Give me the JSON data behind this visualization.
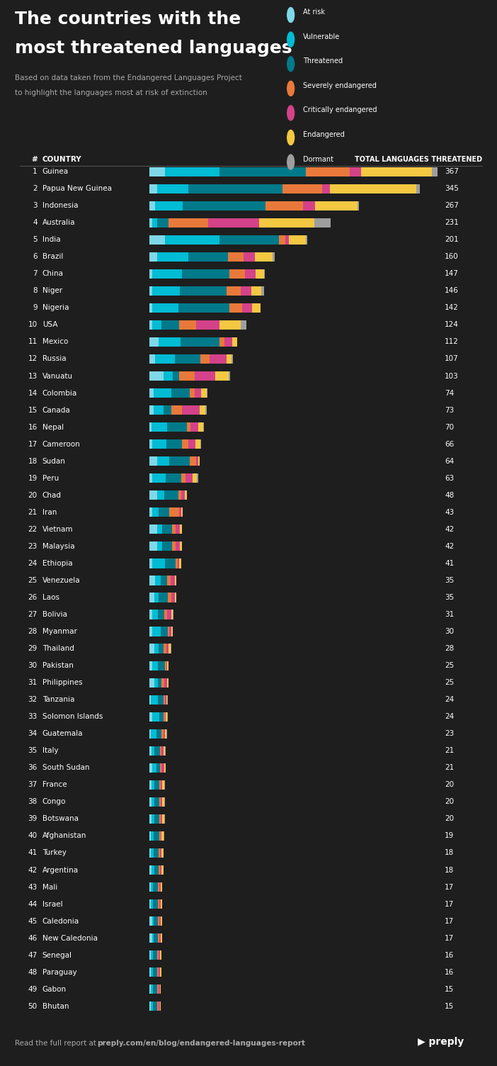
{
  "title_line1": "The countries with the",
  "title_line2": "most threatened languages",
  "subtitle_line1": "Based on data taken from the Endangered Languages Project",
  "subtitle_line2": "to highlight the languages most at risk of extinction",
  "background_color": "#1e1e1e",
  "colors": [
    "#7fd8e8",
    "#00bcd4",
    "#007a8a",
    "#e8793a",
    "#d4428a",
    "#f5c842",
    "#9e9e9e"
  ],
  "legend_labels": [
    "At risk",
    "Vulnerable",
    "Threatened",
    "Severely endangered",
    "Critically endangered",
    "Endangered",
    "Dormant"
  ],
  "categories": [
    "Guinea",
    "Papua New Guinea",
    "Indonesia",
    "Australia",
    "India",
    "Brazil",
    "China",
    "Niger",
    "Nigeria",
    "USA",
    "Mexico",
    "Russia",
    "Vanuatu",
    "Colombia",
    "Canada",
    "Nepal",
    "Cameroon",
    "Sudan",
    "Peru",
    "Chad",
    "Iran",
    "Vietnam",
    "Malaysia",
    "Ethiopia",
    "Venezuela",
    "Laos",
    "Bolivia",
    "Myanmar",
    "Thailand",
    "Pakistan",
    "Philippines",
    "Tanzania",
    "Solomon Islands",
    "Guatemala",
    "Italy",
    "South Sudan",
    "France",
    "Congo",
    "Botswana",
    "Afghanistan",
    "Turkey",
    "Argentina",
    "Mali",
    "Israel",
    "Caledonia",
    "New Caledonia",
    "Senegal",
    "Paraguay",
    "Gabon",
    "Bhutan"
  ],
  "totals": [
    367,
    345,
    267,
    231,
    201,
    160,
    147,
    146,
    142,
    124,
    112,
    107,
    103,
    74,
    73,
    70,
    66,
    64,
    63,
    48,
    43,
    42,
    42,
    41,
    35,
    35,
    31,
    30,
    28,
    25,
    25,
    24,
    24,
    23,
    21,
    21,
    20,
    20,
    20,
    19,
    18,
    18,
    17,
    17,
    17,
    17,
    16,
    16,
    15,
    15
  ],
  "raw_segments": [
    [
      20,
      70,
      110,
      55,
      15,
      90,
      7
    ],
    [
      10,
      40,
      120,
      50,
      10,
      110,
      5
    ],
    [
      8,
      35,
      105,
      48,
      15,
      54,
      2
    ],
    [
      4,
      6,
      15,
      50,
      65,
      70,
      21
    ],
    [
      20,
      70,
      75,
      8,
      5,
      22,
      1
    ],
    [
      10,
      40,
      50,
      20,
      15,
      22,
      3
    ],
    [
      4,
      38,
      60,
      20,
      14,
      10,
      1
    ],
    [
      4,
      35,
      60,
      18,
      13,
      13,
      3
    ],
    [
      4,
      33,
      65,
      16,
      13,
      11,
      0
    ],
    [
      4,
      12,
      22,
      22,
      30,
      27,
      7
    ],
    [
      12,
      28,
      50,
      6,
      10,
      6,
      0
    ],
    [
      8,
      25,
      32,
      12,
      22,
      6,
      2
    ],
    [
      18,
      12,
      8,
      20,
      26,
      17,
      2
    ],
    [
      6,
      22,
      24,
      6,
      8,
      7,
      1
    ],
    [
      6,
      12,
      10,
      14,
      22,
      8,
      1
    ],
    [
      3,
      20,
      25,
      5,
      10,
      6,
      1
    ],
    [
      4,
      18,
      20,
      8,
      9,
      6,
      1
    ],
    [
      10,
      16,
      26,
      8,
      3,
      1,
      0
    ],
    [
      4,
      17,
      20,
      5,
      9,
      6,
      2
    ],
    [
      10,
      9,
      18,
      4,
      4,
      3,
      0
    ],
    [
      4,
      8,
      14,
      12,
      3,
      2,
      0
    ],
    [
      10,
      7,
      12,
      5,
      5,
      3,
      0
    ],
    [
      10,
      7,
      12,
      5,
      5,
      3,
      0
    ],
    [
      4,
      16,
      14,
      2,
      2,
      3,
      0
    ],
    [
      8,
      7,
      8,
      4,
      6,
      2,
      0
    ],
    [
      7,
      5,
      12,
      4,
      5,
      2,
      0
    ],
    [
      4,
      7,
      8,
      4,
      5,
      2,
      1
    ],
    [
      4,
      11,
      9,
      2,
      2,
      2,
      0
    ],
    [
      7,
      5,
      6,
      4,
      3,
      2,
      1
    ],
    [
      4,
      7,
      9,
      2,
      1,
      2,
      0
    ],
    [
      7,
      4,
      5,
      3,
      4,
      2,
      0
    ],
    [
      2,
      9,
      7,
      2,
      2,
      1,
      1
    ],
    [
      4,
      9,
      5,
      2,
      1,
      2,
      1
    ],
    [
      2,
      7,
      7,
      2,
      2,
      2,
      1
    ],
    [
      3,
      4,
      7,
      2,
      2,
      2,
      1
    ],
    [
      4,
      5,
      5,
      2,
      3,
      2,
      0
    ],
    [
      3,
      4,
      6,
      2,
      2,
      2,
      1
    ],
    [
      3,
      4,
      6,
      2,
      2,
      2,
      1
    ],
    [
      3,
      4,
      6,
      2,
      2,
      2,
      1
    ],
    [
      2,
      4,
      7,
      2,
      1,
      2,
      1
    ],
    [
      2,
      4,
      6,
      2,
      2,
      2,
      0
    ],
    [
      3,
      4,
      5,
      2,
      2,
      2,
      0
    ],
    [
      2,
      3,
      6,
      2,
      2,
      2,
      0
    ],
    [
      2,
      3,
      6,
      2,
      2,
      2,
      0
    ],
    [
      4,
      2,
      5,
      2,
      2,
      2,
      0
    ],
    [
      4,
      2,
      5,
      2,
      2,
      2,
      0
    ],
    [
      2,
      3,
      5,
      2,
      2,
      2,
      0
    ],
    [
      2,
      3,
      5,
      2,
      2,
      2,
      0
    ],
    [
      2,
      3,
      5,
      2,
      2,
      1,
      0
    ],
    [
      2,
      3,
      5,
      2,
      2,
      1,
      0
    ]
  ],
  "footer_text_normal": "Read the full report at ",
  "footer_text_bold": "preply.com/en/blog/endangered-languages-report"
}
